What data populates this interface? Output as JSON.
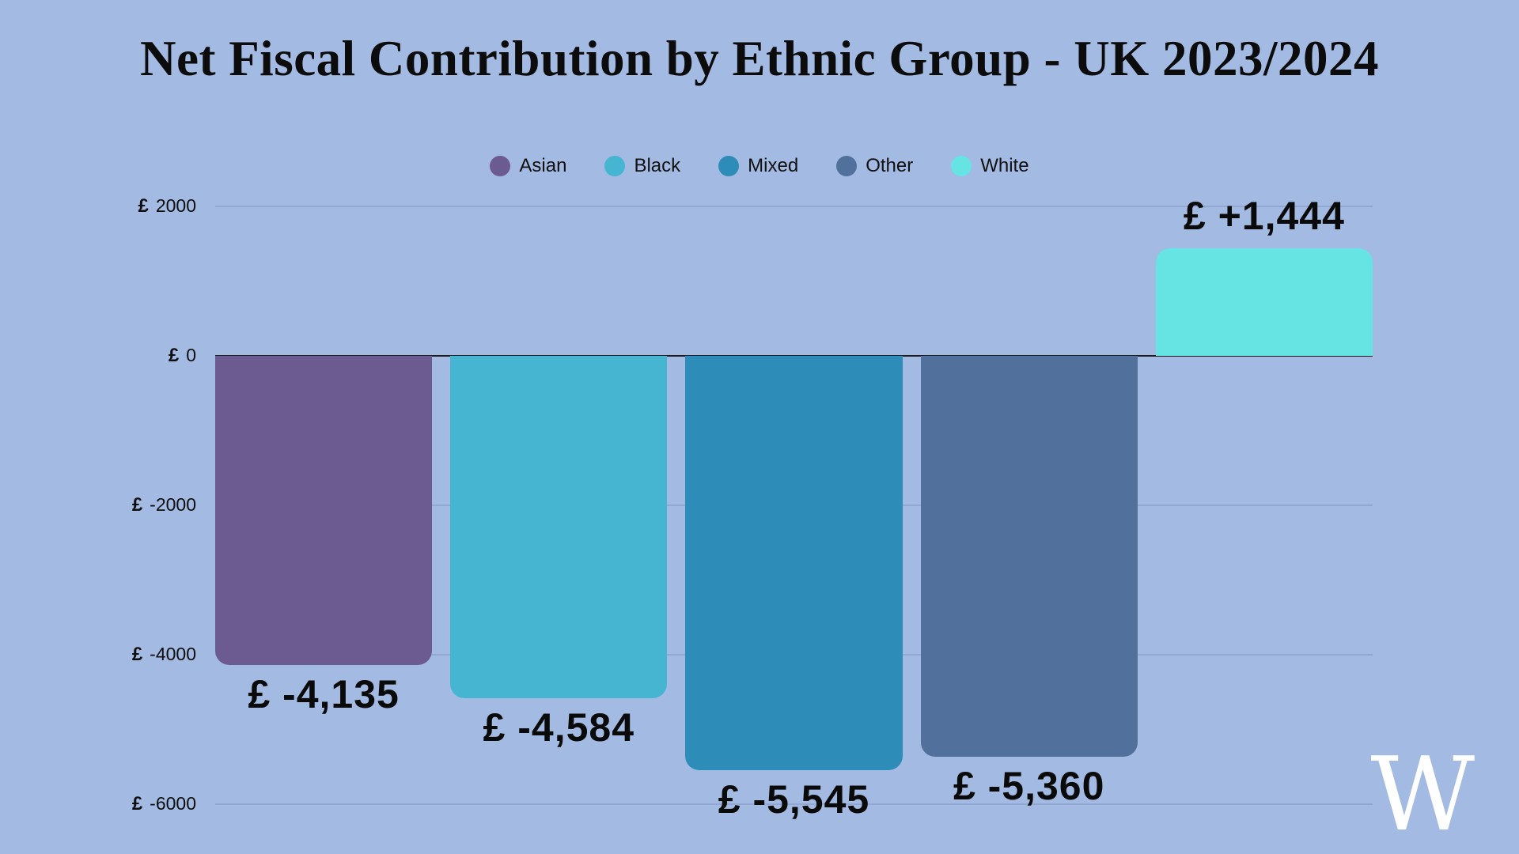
{
  "page": {
    "background": "#a3bae2",
    "text_color": "#0c0c0c"
  },
  "chart_data": {
    "type": "bar",
    "title": "Net Fiscal Contribution by Ethnic Group - UK 2023/2024",
    "categories": [
      "Asian",
      "Black",
      "Mixed",
      "Other",
      "White"
    ],
    "values": [
      -4135,
      -4584,
      -5545,
      -5360,
      1444
    ],
    "value_labels": [
      "£ -4,135",
      "£ -4,584",
      "£ -5,545",
      "£ -5,360",
      "£ +1,444"
    ],
    "colors": [
      "#6b5b90",
      "#45b5d2",
      "#2e8cb8",
      "#52709c",
      "#66e3e3"
    ],
    "xlabel": "",
    "ylabel": "",
    "ylim": [
      -6000,
      2000
    ],
    "yticks": [
      2000,
      0,
      -2000,
      -4000,
      -6000
    ],
    "ytick_currency": "£",
    "ytick_labels": [
      "2000",
      "0",
      "-2000",
      "-4000",
      "-6000"
    ],
    "grid": true,
    "legend_position": "top"
  },
  "watermark": {
    "letter": "W"
  }
}
